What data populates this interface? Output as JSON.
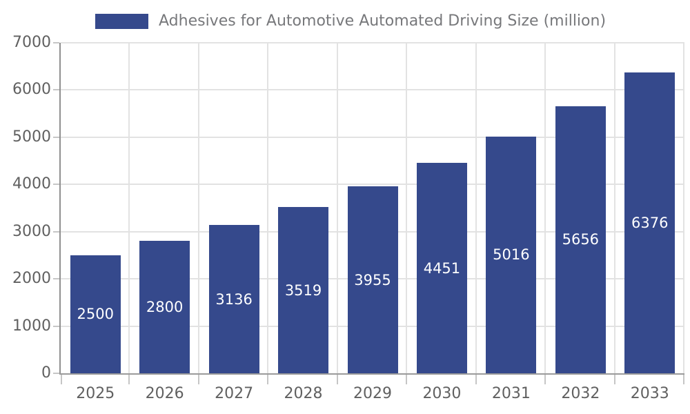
{
  "chart_data": {
    "type": "bar",
    "title": "Adhesives for Automotive Automated Driving Size (million)",
    "categories": [
      "2025",
      "2026",
      "2027",
      "2028",
      "2029",
      "2030",
      "2031",
      "2032",
      "2033"
    ],
    "values": [
      2500,
      2800,
      3136,
      3519,
      3955,
      4451,
      5016,
      5656,
      6376
    ],
    "xlabel": "",
    "ylabel": "",
    "ylim": [
      0,
      7000
    ],
    "ytick_step": 1000,
    "ytick_labels": [
      "0",
      "1000",
      "2000",
      "3000",
      "4000",
      "5000",
      "6000",
      "7000"
    ],
    "grid": true,
    "legend_position": "top",
    "value_labels": "inside-center",
    "colors": {
      "bar": "#35498C",
      "grid": "#e2e2e2",
      "axis": "#9a9a9a",
      "tick": "#c6c6c6",
      "axis_text": "#606060",
      "title_text": "#77787b",
      "value_label_text": "#ffffff",
      "background": "#ffffff"
    }
  }
}
